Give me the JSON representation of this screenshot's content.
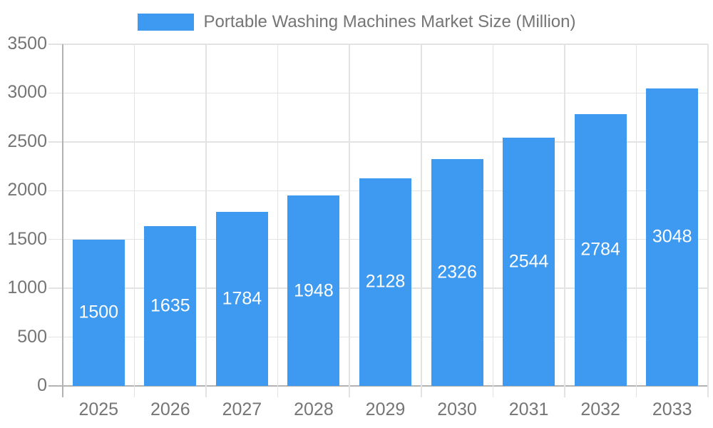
{
  "chart_data": {
    "type": "bar",
    "title": "",
    "legend_label": "Portable Washing Machines Market Size (Million)",
    "legend_position": "top-center",
    "categories": [
      "2025",
      "2026",
      "2027",
      "2028",
      "2029",
      "2030",
      "2031",
      "2032",
      "2033"
    ],
    "values": [
      1500,
      1635,
      1784,
      1948,
      2128,
      2326,
      2544,
      2784,
      3048
    ],
    "xlabel": "",
    "ylabel": "",
    "ylim": [
      0,
      3500
    ],
    "ytick_step": 500,
    "yticks": [
      0,
      500,
      1000,
      1500,
      2000,
      2500,
      3000,
      3500
    ],
    "grid": true,
    "bar_labels_inside": true,
    "colors": {
      "bar": "#3D9AF0",
      "bar_value_text": "#ffffff",
      "axis_text": "#757575",
      "gridline": "#e3e3e3",
      "axis_line": "#b3b3b3",
      "background": "#ffffff"
    }
  }
}
